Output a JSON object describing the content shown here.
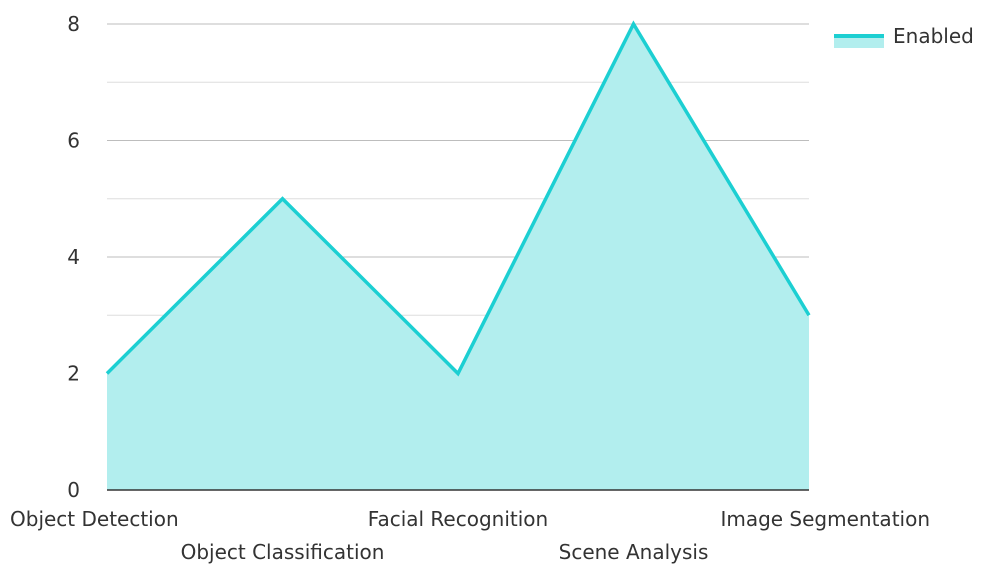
{
  "chart_data": {
    "type": "area",
    "categories": [
      "Object Detection",
      "Object Classification",
      "Facial Recognition",
      "Scene Analysis",
      "Image Segmentation"
    ],
    "series": [
      {
        "name": "Enabled",
        "values": [
          2,
          5,
          2,
          8,
          3
        ]
      }
    ],
    "ylim": [
      0,
      8
    ],
    "yticks": [
      0,
      2,
      4,
      6,
      8
    ],
    "grid": true,
    "legend": "top-right",
    "colors": {
      "line": "#1ccfd2",
      "fill": "#b2eeee",
      "grid_major": "#bdbdbd",
      "grid_minor": "#dedede",
      "axis": "#333333",
      "text": "#333333"
    }
  }
}
